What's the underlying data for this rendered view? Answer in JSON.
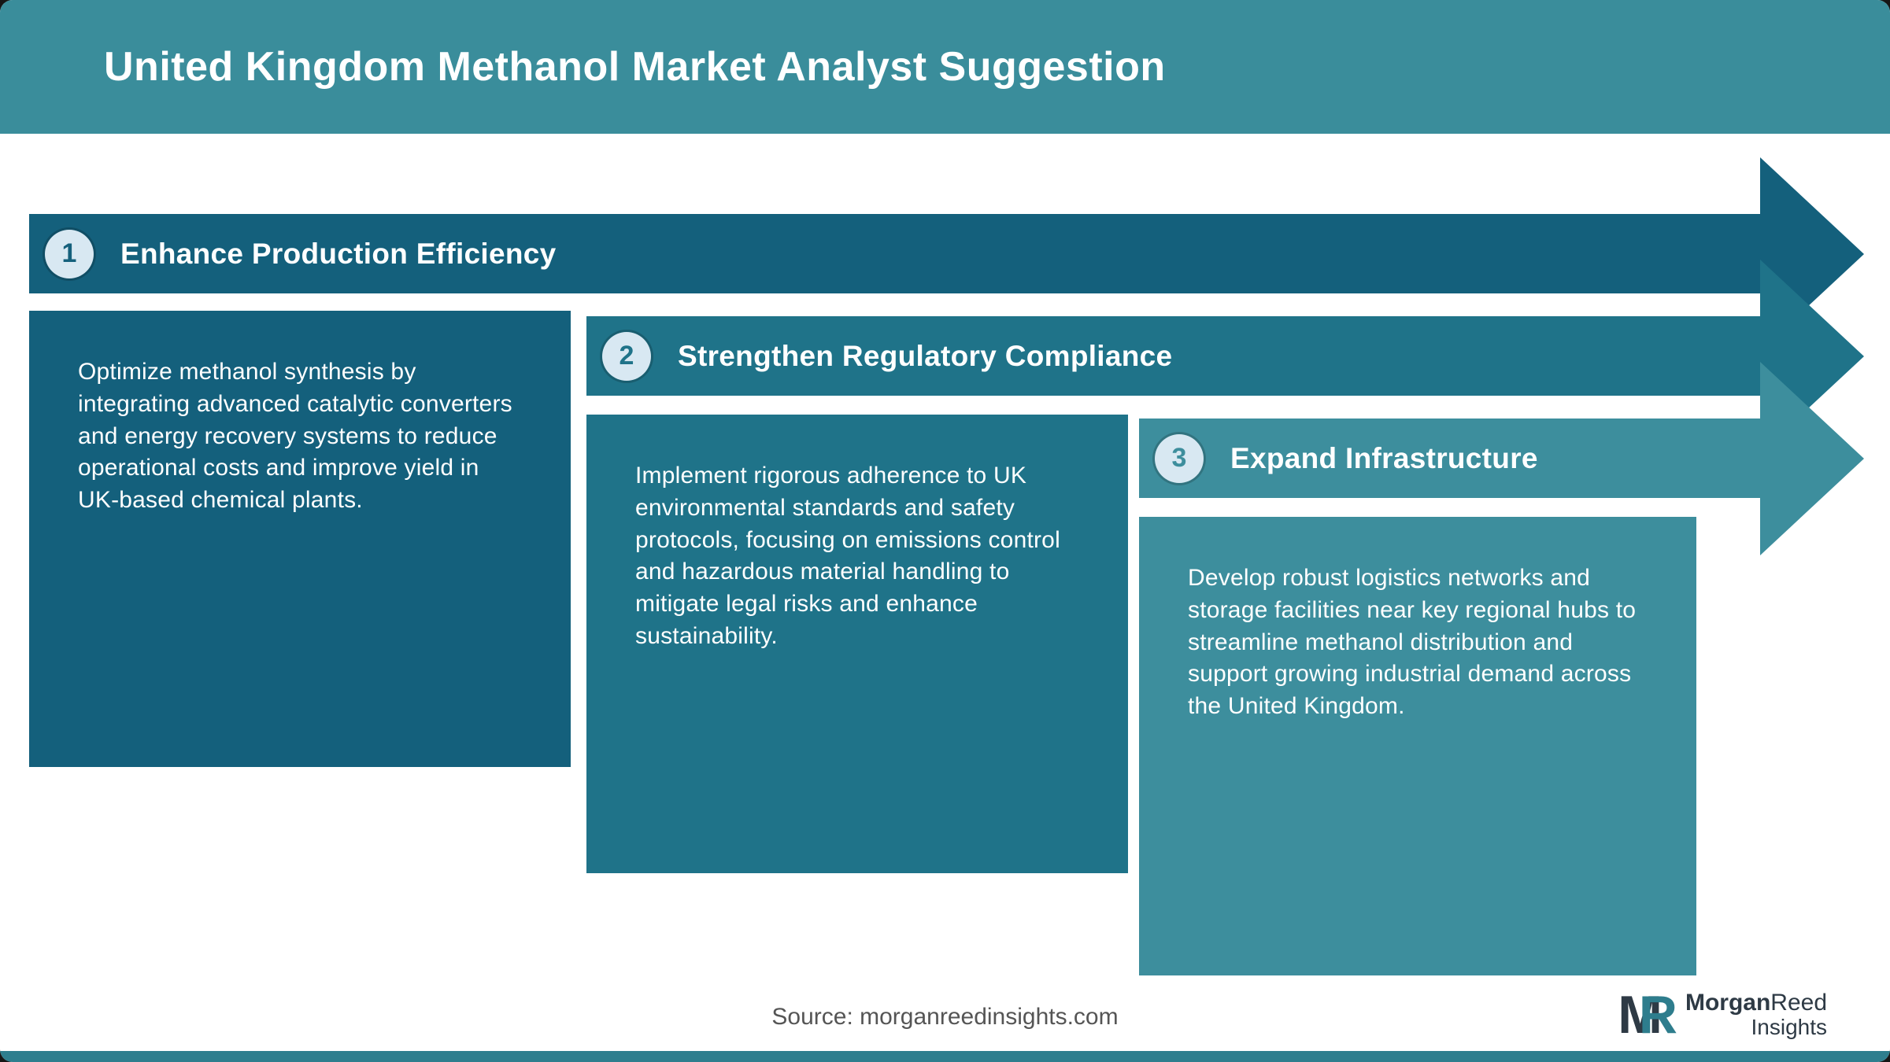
{
  "header": {
    "title": "United Kingdom Methanol Market Analyst Suggestion"
  },
  "steps": [
    {
      "number": "1",
      "title": "Enhance Production Efficiency",
      "description": "Optimize methanol synthesis by integrating advanced catalytic converters and energy recovery systems to reduce operational costs and improve yield in UK-based chemical plants.",
      "color": "#14607C"
    },
    {
      "number": "2",
      "title": "Strengthen Regulatory Compliance",
      "description": "Implement rigorous adherence to UK environmental standards and safety protocols, focusing on emissions control and hazardous material handling to mitigate legal risks and enhance sustainability.",
      "color": "#1F7389"
    },
    {
      "number": "3",
      "title": "Expand Infrastructure",
      "description": "Develop robust logistics networks and storage facilities near key regional hubs to streamline methanol distribution and support growing industrial demand across the United Kingdom.",
      "color": "#3D8E9D"
    }
  ],
  "footer": {
    "source": "Source: morganreedinsights.com",
    "logo_monogram_m": "M",
    "logo_monogram_r": "R",
    "logo_name_morgan": "Morgan",
    "logo_name_reed": "Reed",
    "logo_sub": "Insights"
  },
  "colors": {
    "header_bg": "#3A8D9B",
    "bottom_bar": "#2E7E8E",
    "number_circle_bg": "#D8E8F2",
    "source_text": "#555555",
    "logo_dark": "#2E3A45",
    "logo_teal": "#2E7D8D"
  }
}
